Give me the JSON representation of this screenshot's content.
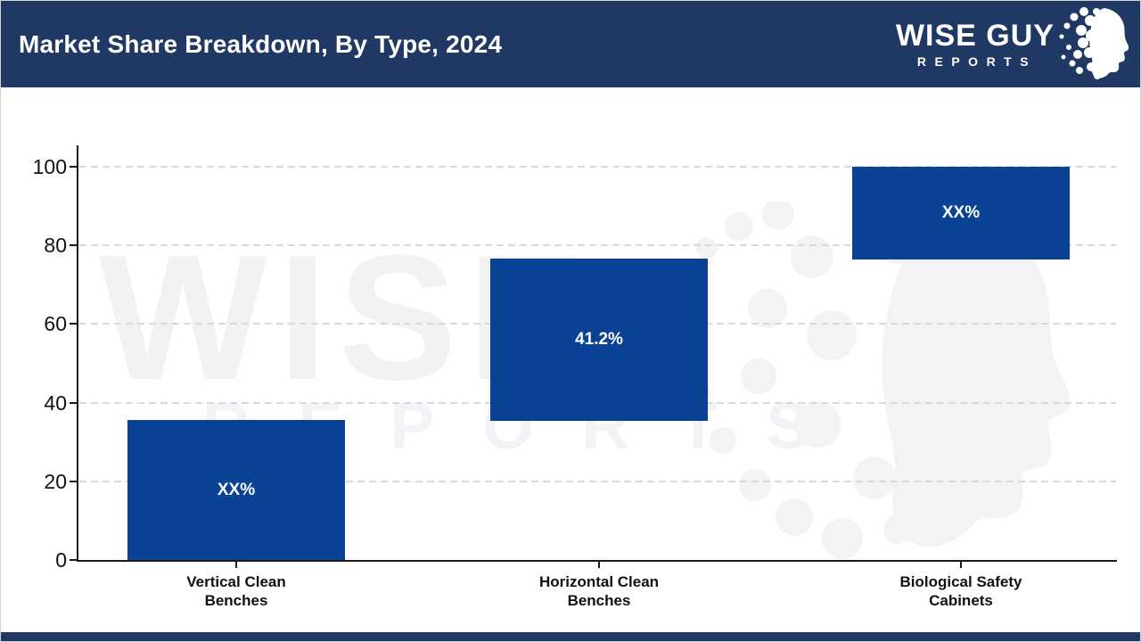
{
  "header": {
    "title": "Market Share Breakdown, By Type, 2024",
    "brand": {
      "line1": "WISE GUY",
      "line2": "REPORTS"
    },
    "bg_color": "#203864"
  },
  "watermark": {
    "word": "WISE",
    "word2": "REPORTS"
  },
  "chart_data": {
    "type": "bar",
    "variant": "floating-stacked-segments",
    "title": "Market Share Breakdown, By Type, 2024",
    "xlabel": "",
    "ylabel": "",
    "ylim": [
      0,
      105
    ],
    "yticks": [
      0,
      20,
      40,
      60,
      80,
      100
    ],
    "grid": "horizontal-dashed",
    "bar_color": "#0a4296",
    "value_label_color": "#ffffff",
    "categories": [
      {
        "line1": "Vertical Clean",
        "line2": "Benches"
      },
      {
        "line1": "Horizontal Clean",
        "line2": "Benches"
      },
      {
        "line1": "Biological Safety",
        "line2": "Cabinets"
      }
    ],
    "segments": [
      {
        "category": "Vertical Clean Benches",
        "start": 0,
        "end": 35.5,
        "value_label": "XX%"
      },
      {
        "category": "Horizontal Clean Benches",
        "start": 35.4,
        "end": 76.6,
        "value_label": "41.2%"
      },
      {
        "category": "Biological Safety Cabinets",
        "start": 76.5,
        "end": 100,
        "value_label": "XX%"
      }
    ]
  }
}
